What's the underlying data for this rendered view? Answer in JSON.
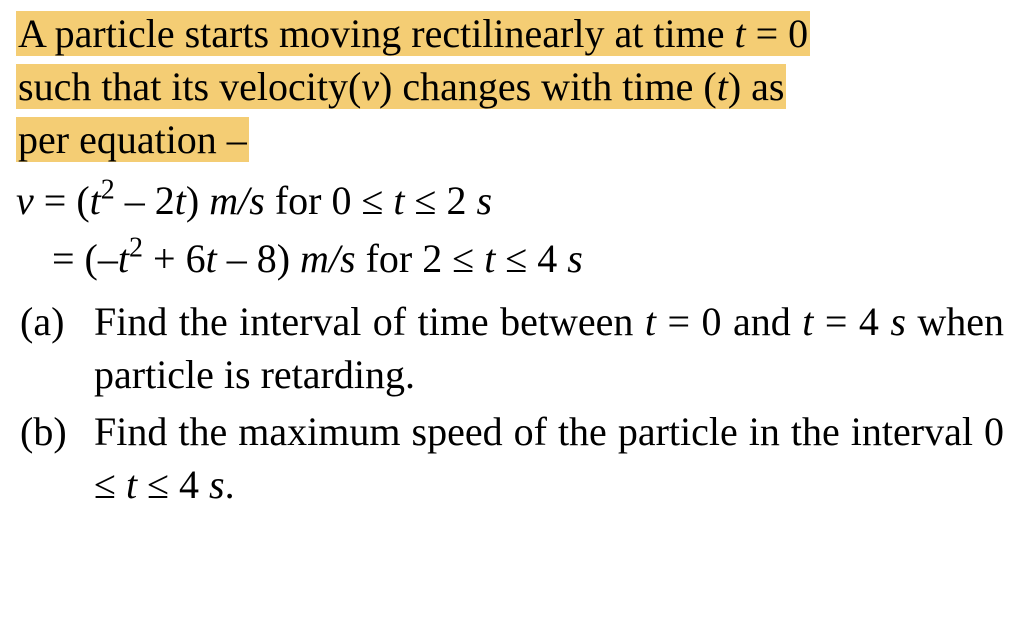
{
  "colors": {
    "background": "#ffffff",
    "text": "#000000",
    "highlight": "#f4cd74"
  },
  "typography": {
    "family": "Times New Roman",
    "body_size_pt": 30,
    "line_height": 1.32
  },
  "stem": {
    "hl_line1": "A particle starts moving rectilinearly at time ",
    "hl_t_eq": "t",
    "hl_eq0": " = 0",
    "hl_line2_pre": "such that its velocity(",
    "hl_v": "v",
    "hl_line2_post": ") changes with time (",
    "hl_t": "t",
    "hl_line2_end": ") as",
    "hl_line3": "per equation –"
  },
  "equations": {
    "line1": {
      "v": "v",
      "eq": " = (",
      "t": "t",
      "sq": "2",
      "minus": " – 2",
      "t2": "t",
      "close": ") ",
      "unit": "m/s",
      "for": " for 0 ≤ ",
      "tvar": "t",
      "rng": " ≤ 2 ",
      "s": "s"
    },
    "line2": {
      "eq": "= (–",
      "t": "t",
      "sq": "2",
      "plus": " + 6",
      "t2": "t",
      "minus8": " – 8) ",
      "unit": "m/s",
      "for": " for 2 ≤ ",
      "tvar": "t",
      "rng": " ≤ 4 ",
      "s": "s"
    }
  },
  "parts": {
    "a": {
      "label": "(a)",
      "text1": "Find the interval of time between ",
      "t": "t",
      "eq0": " = 0 and ",
      "t2": "t",
      "eq4": " = 4 ",
      "s": "s",
      "rest": " when particle is retarding."
    },
    "b": {
      "label": "(b)",
      "text1": "Find the maximum speed of the particle in the interval 0 ≤ ",
      "t": "t",
      "rng": " ≤ 4 ",
      "s": "s",
      "dot": "."
    }
  }
}
